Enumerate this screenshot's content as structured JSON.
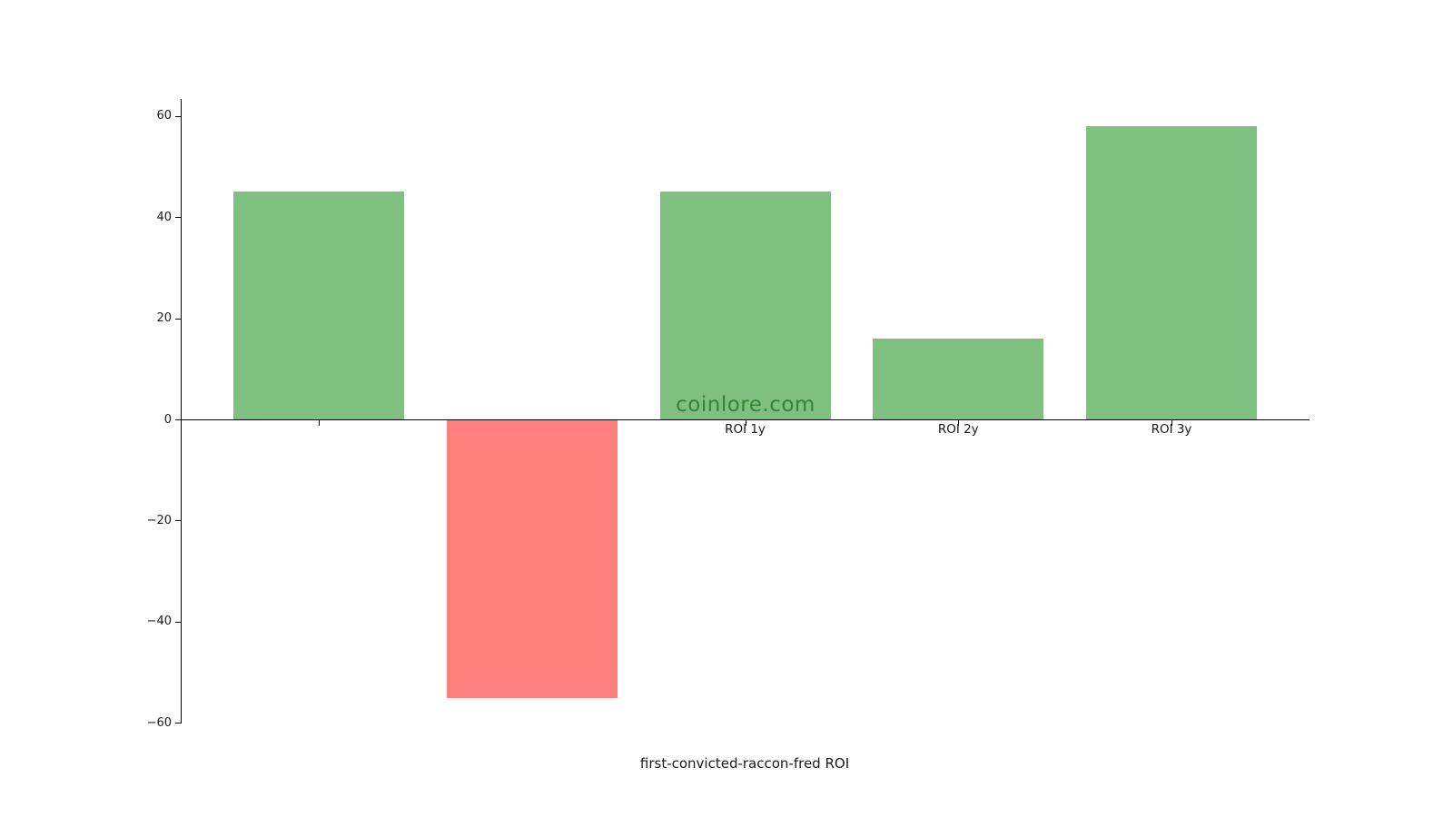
{
  "watermark": {
    "text": "coinlore.com",
    "color": "#2f7d32"
  },
  "chart_data": {
    "type": "bar",
    "categories": [
      "",
      "",
      "ROI 1y",
      "ROI 2y",
      "ROI 3y"
    ],
    "values": [
      45,
      -55,
      45,
      16,
      58
    ],
    "title": "first-convicted-raccon-fred ROI",
    "xlabel": "",
    "ylabel": "",
    "ylim": [
      -60.5,
      63.5
    ],
    "yticks": [
      60,
      40,
      20,
      0,
      -20,
      -40,
      -60
    ],
    "grid": false,
    "legend": "none",
    "colors": {
      "positive": "#7fbf7f",
      "negative": "#ff7f7f",
      "axis": "#000000",
      "tick_text": "#1a1a1a"
    }
  }
}
